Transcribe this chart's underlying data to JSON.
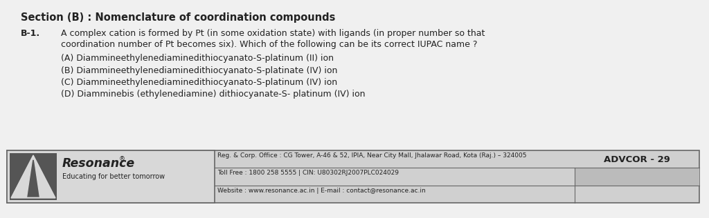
{
  "title": "Section (B) : Nomenclature of coordination compounds",
  "question_label": "B-1.",
  "q_line1": "A complex cation is formed by Pt (in some oxidation state) with ligands (in proper number so that",
  "q_line2": "coordination number of Pt becomes six). Which of the following can be its correct IUPAC name ?",
  "options": [
    "(A) Diammineethylenediaminedithiocyanato-S-platinum (II) ion",
    "(B) Diammineethylenediaminedithiocyanato-S-platinate (IV) ion",
    "(C) Diammineethylenediaminedithiocyanato-S-platinum (IV) ion",
    "(D) Diamminebis (ethylenediamine) dithiocyanate-S- platinum (IV) ion"
  ],
  "footer_logo_text": "Resonance",
  "footer_tagline": "Educating for better tomorrow",
  "footer_reg": "Reg. & Corp. Office : CG Tower, A-46 & 52, IPIA, Near City Mall, Jhalawar Road, Kota (Raj.) – 324005",
  "footer_website": "Website : www.resonance.ac.in | E-mail : contact@resonance.ac.in",
  "footer_toll": "Toll Free : 1800 258 5555 | CIN: U80302RJ2007PLC024029",
  "footer_code": "ADVCOR - 29",
  "bg_color": "#f0f0f0",
  "text_color": "#222222",
  "footer_bg": "#cccccc",
  "logo_bg": "#555555",
  "footer_border": "#666666",
  "title_fontsize": 10.5,
  "body_fontsize": 9.0,
  "option_fontsize": 9.0,
  "footer_fontsize": 6.5,
  "logo_fontsize": 12.5,
  "tagline_fontsize": 7.0,
  "advcor_fontsize": 9.5
}
